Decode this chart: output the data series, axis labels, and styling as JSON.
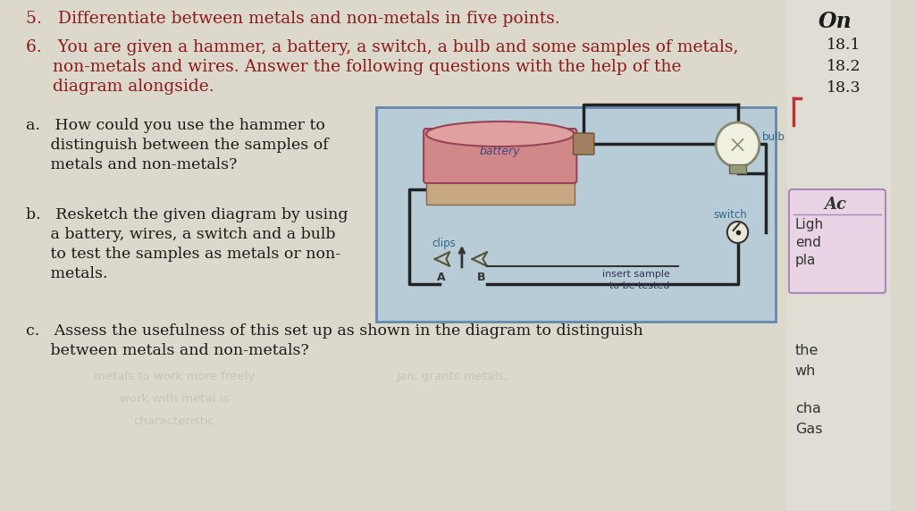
{
  "bg_color": "#ddd8cc",
  "title_text": "5.   Differentiate between metals and non-metals in five points.",
  "q6_line1": "6.   You are given a hammer, a battery, a switch, a bulb and some samples of metals,",
  "q6_line2": "     non-metals and wires. Answer the following questions with the help of the",
  "q6_line3": "     diagram alongside.",
  "qa_line1": "a.   How could you use the hammer to",
  "qa_line2": "     distinguish between the samples of",
  "qa_line3": "     metals and non-metals?",
  "qb_line1": "b.   Resketch the given diagram by using",
  "qb_line2": "     a battery, wires, a switch and a bulb",
  "qb_line3": "     to test the samples as metals or non-",
  "qb_line4": "     metals.",
  "qc_line1": "c.   Assess the usefulness of this set up as shown in the diagram to distinguish",
  "qc_line2": "     between metals and non-metals?",
  "right_col_title": "On",
  "right_nums": [
    "18.1",
    "18.2",
    "18.3"
  ],
  "right_box_title": "Ac",
  "right_box_text1": "Ligh",
  "right_box_text2": "end",
  "right_box_text3": "pla",
  "title_color": "#8b1a1a",
  "q6_color": "#8b1a1a",
  "body_color": "#1a1a1a",
  "right_col_color": "#1a1a1a",
  "right_box_bg": "#e8d4e4",
  "right_box_border": "#aa88bb",
  "diag_box_color": "#b8ccd8",
  "diag_border_color": "#6688aa",
  "battery_body_color": "#c87878",
  "battery_top_color": "#e8c0a0",
  "battery_base_color": "#b09060",
  "battery_label": "battery",
  "clip_label": "clips",
  "switch_label": "switch",
  "bulb_label": "bulb",
  "insert_label1": "insert sample",
  "insert_label2": "to be tested",
  "label_A": "A",
  "label_B": "B",
  "faint_lines": [
    "metals to work more freely",
    "work with metal is",
    "characteristic"
  ],
  "faint_lines2": [
    "Jan, grants metals,"
  ]
}
